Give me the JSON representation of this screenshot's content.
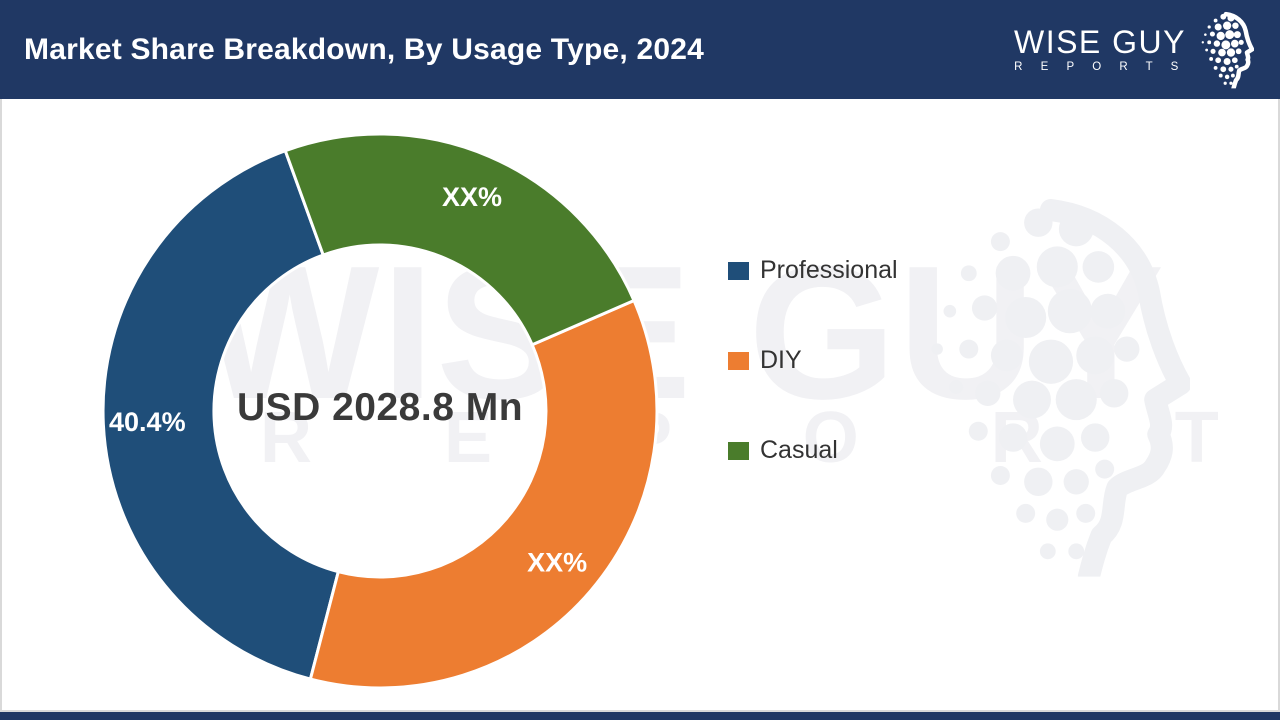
{
  "header": {
    "title": "Market Share Breakdown, By Usage Type, 2024",
    "background_color": "#203864",
    "logo": {
      "line1": "WISE GUY",
      "line2": "R E P O R T S",
      "head_icon": "dotted-head-profile-icon"
    }
  },
  "watermark": {
    "line1": "WISE GUY",
    "line2": "R E P O R T S"
  },
  "chart_data": {
    "type": "pie",
    "subtype": "donut",
    "title": "Market Share Breakdown, By Usage Type, 2024",
    "center_label": "USD 2028.8 Mn",
    "categories": [
      "Professional",
      "DIY",
      "Casual"
    ],
    "segments": [
      {
        "name": "Professional",
        "label": "40.4%",
        "value_pct": 40.4,
        "color": "#1f4e79",
        "start_angle": 110,
        "end_angle": 255.44
      },
      {
        "name": "DIY",
        "label": "XX%",
        "value_pct": 35.6,
        "color": "#ed7d31",
        "start_angle": 255.44,
        "end_angle": 383.5
      },
      {
        "name": "Casual",
        "label": "XX%",
        "value_pct": 24.0,
        "color": "#4a7c2b",
        "start_angle": 23.5,
        "end_angle": 110
      }
    ],
    "legend": [
      {
        "label": "Professional",
        "color": "#1f4e79"
      },
      {
        "label": "DIY",
        "color": "#ed7d31"
      },
      {
        "label": "Casual",
        "color": "#4a7c2b"
      }
    ],
    "legend_position": "right",
    "label_text_color": "#ffffff",
    "separator_color": "#ffffff"
  }
}
